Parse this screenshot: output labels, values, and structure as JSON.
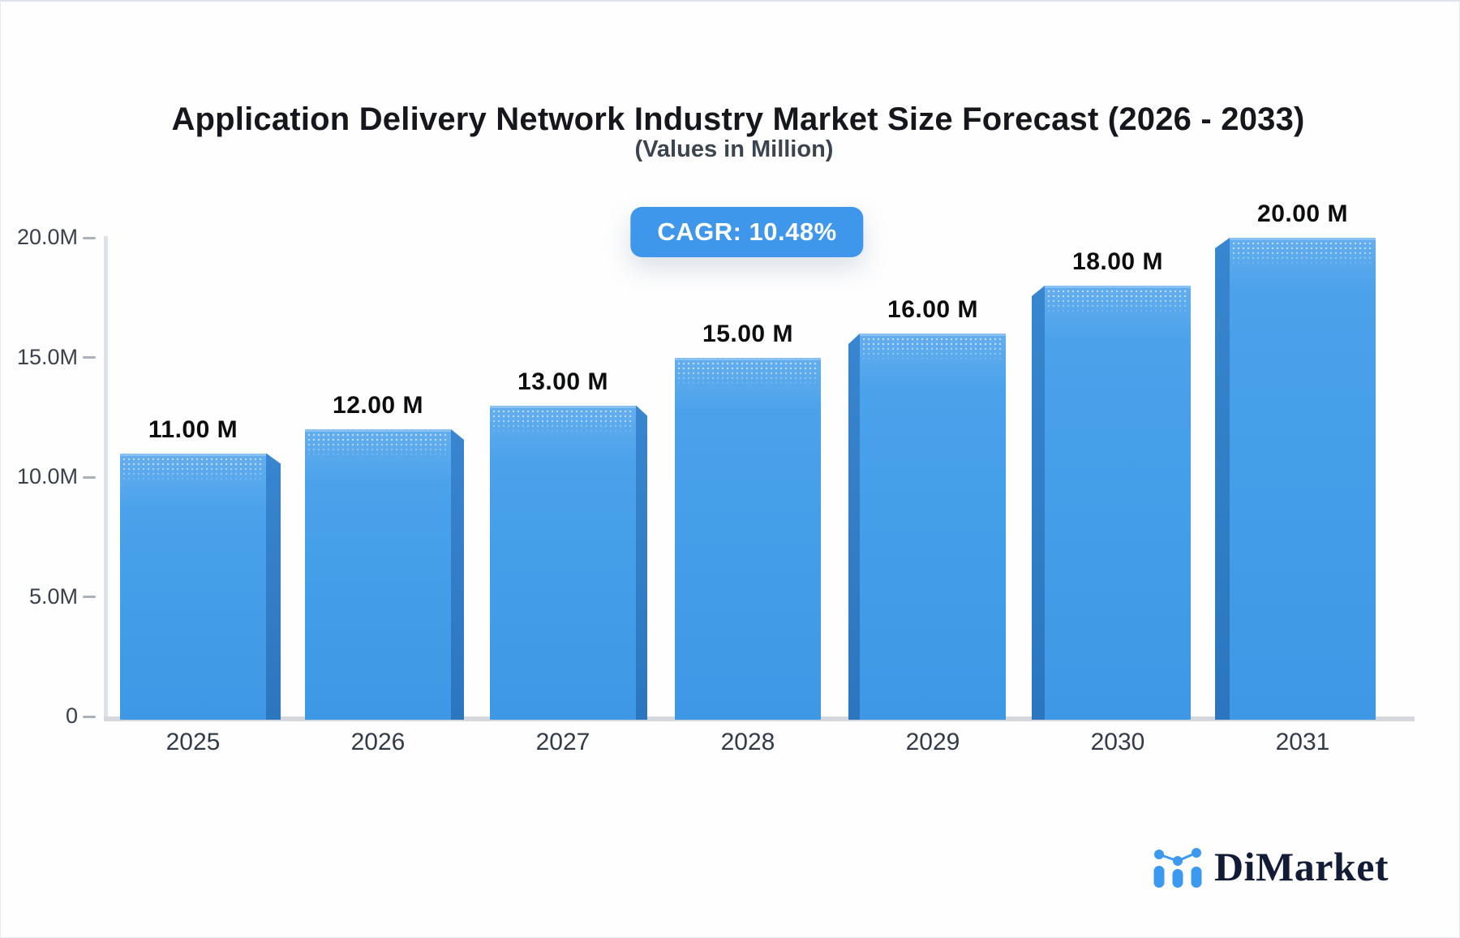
{
  "header": {
    "title": "Application Delivery Network Industry Market Size Forecast (2026 - 2033)",
    "subtitle": "(Values in Million)",
    "cagr_label": "CAGR: 10.48%"
  },
  "logo": {
    "text": "DiMarket",
    "icon": "logo-bar-chart-icon"
  },
  "colors": {
    "bar_front": "#459fe9",
    "bar_front_highlight": "#8ac3f3",
    "bar_side": "#2f7cc4",
    "badge_background": "#3e97ea",
    "badge_text": "#ffffff",
    "axis_line": "#dee1e6",
    "baseline": "#d5d8dd",
    "tick_dash": "#a9b2bc",
    "tick_text": "#39404c",
    "year_text": "#333b48",
    "value_text": "#0c0d0e",
    "title_text": "#15171c",
    "logo_blue": "#3b9af0",
    "logo_navy": "#131c36"
  },
  "chart_data": {
    "type": "bar",
    "title": "Application Delivery Network Industry Market Size Forecast (2026 - 2033)",
    "subtitle": "(Values in Million)",
    "unit": "Million",
    "cagr_percent": 10.48,
    "categories": [
      "2025",
      "2026",
      "2027",
      "2028",
      "2029",
      "2030",
      "2031"
    ],
    "values": [
      11,
      12,
      13,
      15,
      16,
      18,
      20
    ],
    "value_labels": [
      "11.00 M",
      "12.00 M",
      "13.00 M",
      "15.00 M",
      "16.00 M",
      "18.00 M",
      "20.00 M"
    ],
    "xlabel": "",
    "ylabel": "",
    "ylim": [
      0,
      20
    ],
    "yticks": [
      {
        "value": 0,
        "label": "0"
      },
      {
        "value": 5,
        "label": "5.0M"
      },
      {
        "value": 10,
        "label": "10.0M"
      },
      {
        "value": 15,
        "label": "15.0M"
      },
      {
        "value": 20,
        "label": "20.0M"
      }
    ],
    "grid": false,
    "legend": "none",
    "bar_style": "3d-perspective-center"
  }
}
